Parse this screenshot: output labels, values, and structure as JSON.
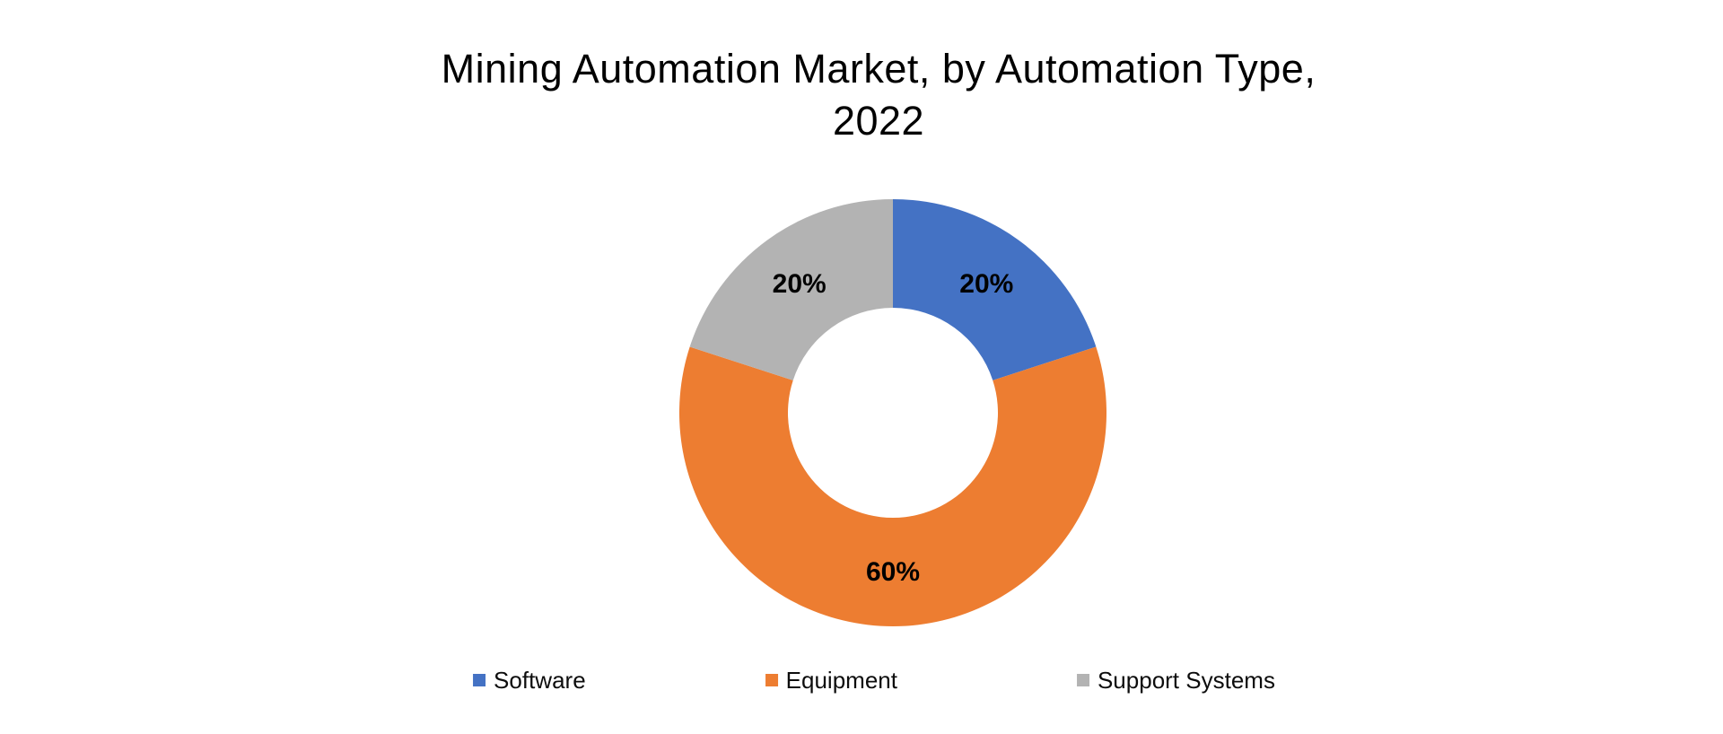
{
  "page": {
    "background": "#ffffff"
  },
  "chart_data": {
    "type": "pie",
    "subtype": "donut",
    "title": "Mining Automation Market, by Automation Type, 2022",
    "title_lines": [
      "Mining Automation Market, by Automation Type,",
      "2022"
    ],
    "categories": [
      "Software",
      "Equipment",
      "Support Systems"
    ],
    "values": [
      20,
      60,
      20
    ],
    "unit": "%",
    "data_labels": [
      "20%",
      "60%",
      "20%"
    ],
    "colors": [
      "#4472C4",
      "#ED7D31",
      "#B3B3B3"
    ],
    "start_angle_deg": 0,
    "direction": "clockwise",
    "hole_ratio": 0.49,
    "grid": false,
    "legend_position": "bottom",
    "legend": [
      {
        "label": "Software",
        "color": "#4472C4"
      },
      {
        "label": "Equipment",
        "color": "#ED7D31"
      },
      {
        "label": "Support Systems",
        "color": "#B3B3B3"
      }
    ],
    "title_color": "#000000",
    "data_label_color": "#000000"
  }
}
